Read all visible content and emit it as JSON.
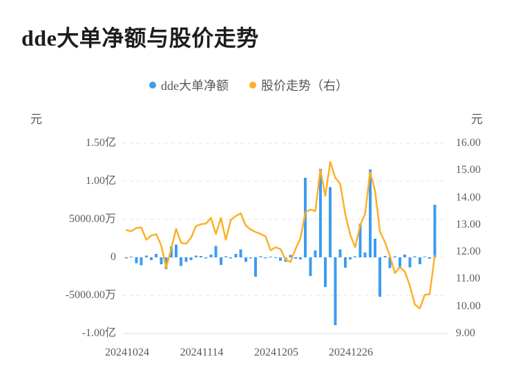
{
  "title": "dde大单净额与股价走势",
  "legend": {
    "items": [
      {
        "label": "dde大单净额",
        "color": "#3d9cf0"
      },
      {
        "label": "股价走势（右）",
        "color": "#fcb026"
      }
    ]
  },
  "axes": {
    "left_unit": "元",
    "right_unit": "元",
    "left_ticks": [
      "1.50亿",
      "1.00亿",
      "5000.00万",
      "0",
      "-5000.00万",
      "-1.00亿"
    ],
    "right_ticks": [
      "16.00",
      "15.00",
      "14.00",
      "13.00",
      "12.00",
      "11.00",
      "10.00",
      "9.00"
    ],
    "x_ticks": [
      "20241024",
      "20241114",
      "20241205",
      "20241226"
    ]
  },
  "chart_data": {
    "type": "combo_bar_line",
    "title": "dde大单净额与股价走势",
    "x": [
      "20241024",
      "20241025",
      "20241028",
      "20241029",
      "20241030",
      "20241031",
      "20241101",
      "20241104",
      "20241105",
      "20241106",
      "20241107",
      "20241108",
      "20241111",
      "20241112",
      "20241113",
      "20241114",
      "20241115",
      "20241118",
      "20241119",
      "20241120",
      "20241121",
      "20241122",
      "20241125",
      "20241126",
      "20241127",
      "20241128",
      "20241129",
      "20241202",
      "20241203",
      "20241204",
      "20241205",
      "20241206",
      "20241209",
      "20241210",
      "20241211",
      "20241212",
      "20241213",
      "20241216",
      "20241217",
      "20241218",
      "20241219",
      "20241220",
      "20241223",
      "20241224",
      "20241225",
      "20241226",
      "20241227",
      "20241230",
      "20241231",
      "20250102",
      "20250103",
      "20250106",
      "20250107",
      "20250108",
      "20250109",
      "20250110",
      "20250113",
      "20250114",
      "20250115",
      "20250116",
      "20250117",
      "20250120",
      "20250121"
    ],
    "x_axis_labels_shown": [
      "20241024",
      "20241114",
      "20241205",
      "20241226"
    ],
    "series": [
      {
        "name": "dde大单净额",
        "type": "bar",
        "axis": "left",
        "unit": "万元",
        "color": "#3d9cf0",
        "values": [
          -150,
          60,
          -780,
          -1060,
          240,
          -380,
          450,
          -900,
          -1550,
          1450,
          1680,
          -1150,
          -600,
          -350,
          230,
          180,
          -150,
          350,
          1500,
          -1000,
          150,
          -150,
          450,
          1060,
          -600,
          -150,
          -2550,
          150,
          -150,
          100,
          -100,
          -450,
          -600,
          300,
          -200,
          -250,
          10450,
          -2450,
          900,
          11650,
          -3900,
          9250,
          -8900,
          1060,
          -1360,
          -250,
          150,
          4400,
          640,
          11550,
          2450,
          -5200,
          200,
          -1400,
          150,
          -1400,
          350,
          -1300,
          150,
          -900,
          100,
          -200,
          6900
        ]
      },
      {
        "name": "股价走势（右）",
        "type": "line",
        "axis": "right",
        "unit": "元",
        "color": "#fcb026",
        "values": [
          12.8,
          12.76,
          12.88,
          12.9,
          12.45,
          12.6,
          12.65,
          12.24,
          11.42,
          12.1,
          12.85,
          12.33,
          12.3,
          12.52,
          12.95,
          13.02,
          13.04,
          13.25,
          12.66,
          13.25,
          12.45,
          13.18,
          13.32,
          13.42,
          12.97,
          12.82,
          12.73,
          12.66,
          12.57,
          12.06,
          12.17,
          12.1,
          11.72,
          11.63,
          12.1,
          12.5,
          13.46,
          13.56,
          13.5,
          15.03,
          14.06,
          15.31,
          14.73,
          14.5,
          13.4,
          12.64,
          12.17,
          12.98,
          13.4,
          14.94,
          14.25,
          12.74,
          12.36,
          11.85,
          11.22,
          11.44,
          11.27,
          10.76,
          10.07,
          9.92,
          10.42,
          10.45,
          11.85
        ]
      }
    ],
    "left_axis": {
      "unit": "元",
      "min": -100000000,
      "max": 150000000,
      "tick_step": 50000000
    },
    "right_axis": {
      "unit": "元",
      "min": 9.0,
      "max": 16.0,
      "tick_step": 1.0
    },
    "grid": "horizontal dashed",
    "legend_position": "top center"
  }
}
